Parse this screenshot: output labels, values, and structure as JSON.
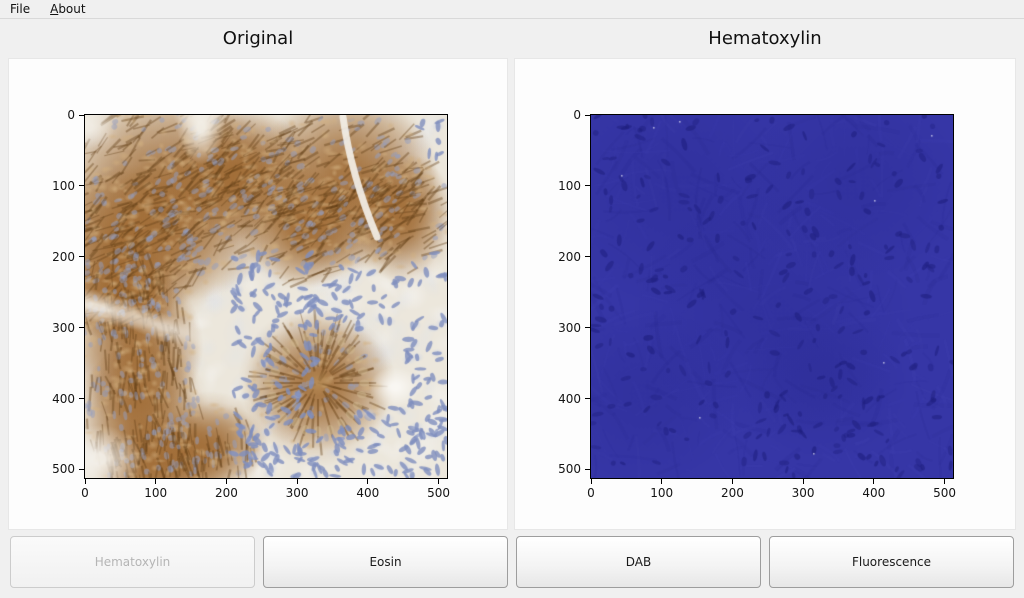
{
  "menubar": {
    "items": [
      {
        "label": "File",
        "mnemonic": ""
      },
      {
        "label": "About",
        "mnemonic": "A"
      }
    ]
  },
  "panels": [
    {
      "title": "Original",
      "image": "ihc-original",
      "x_ticks": [
        0,
        100,
        200,
        300,
        400,
        500
      ],
      "y_ticks": [
        0,
        100,
        200,
        300,
        400,
        500
      ]
    },
    {
      "title": "Hematoxylin",
      "image": "hematoxylin-channel",
      "x_ticks": [
        0,
        100,
        200,
        300,
        400,
        500
      ],
      "y_ticks": [
        0,
        100,
        200,
        300,
        400,
        500
      ]
    }
  ],
  "buttons": [
    {
      "label": "Hematoxylin",
      "enabled": false
    },
    {
      "label": "Eosin",
      "enabled": true
    },
    {
      "label": "DAB",
      "enabled": true
    },
    {
      "label": "Fluorescence",
      "enabled": true
    }
  ],
  "colors": {
    "window_bg": "#f0f0f0",
    "panel_bg": "#fdfdfd",
    "hematoxylin_base": "#3636a6",
    "dab_brown": "#9e6830",
    "stroma_cream": "#ece7dc",
    "nuclei_blue": "#808ebe",
    "disabled_text": "#b5b5b5"
  }
}
